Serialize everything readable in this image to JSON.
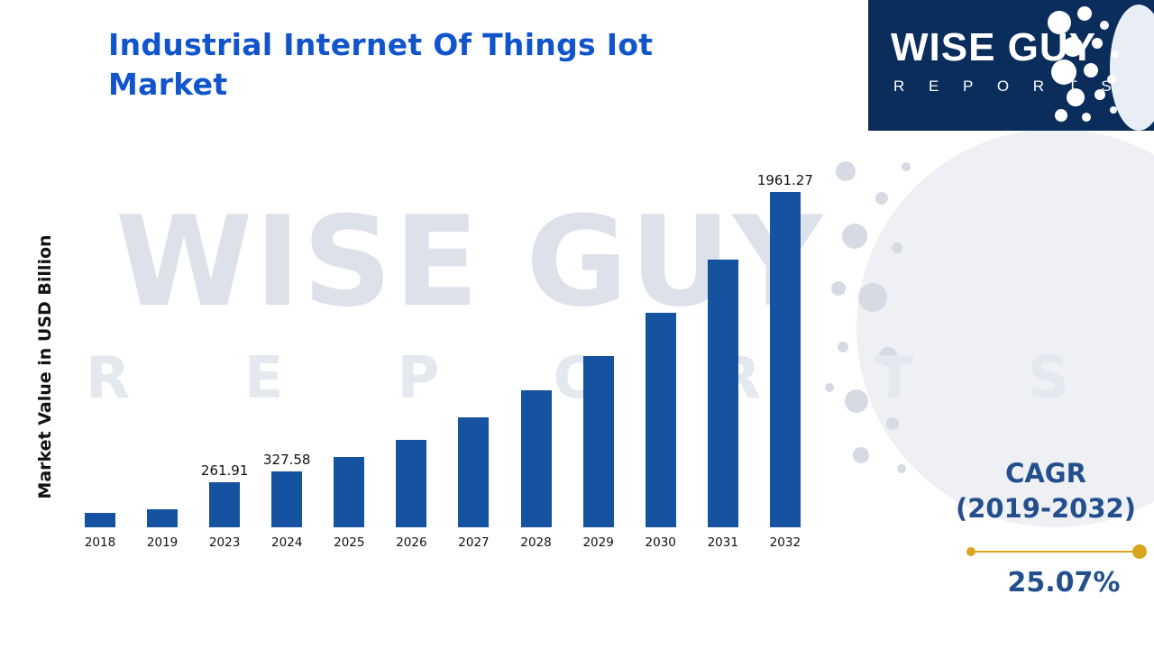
{
  "page": {
    "title_line1": "Industrial Internet Of Things  Iot",
    "title_line2": "Market"
  },
  "logo": {
    "name": "WISE GUY",
    "subtitle": "R E P O R T S",
    "face_icon": "dotted-face-profile-icon"
  },
  "watermark": {
    "line1": "WISE GUY",
    "line2": "R E P O R T S"
  },
  "axis": {
    "y_label": "Market Value in USD Billion"
  },
  "cagr": {
    "label": "CAGR",
    "range": "(2019-2032)",
    "value": "25.07%"
  },
  "colors": {
    "title_blue": "#1155cc",
    "bar_blue": "#15529f",
    "navy": "#0a2d5c",
    "cagr_blue": "#234f8d",
    "gold": "#d9a41e",
    "watermark_gray": "#dde1ea",
    "face_gray": "#eef0f4",
    "dot_gray": "#d6dae2"
  },
  "chart_data": {
    "type": "bar",
    "title": "Industrial Internet Of Things Iot Market",
    "xlabel": "",
    "ylabel": "Market Value in USD Billion",
    "categories": [
      "2018",
      "2019",
      "2023",
      "2024",
      "2025",
      "2026",
      "2027",
      "2028",
      "2029",
      "2030",
      "2031",
      "2032"
    ],
    "values": [
      85,
      107,
      261.91,
      327.58,
      409.7,
      512.4,
      640.9,
      801.6,
      1002.6,
      1254.0,
      1568.3,
      1961.27
    ],
    "value_labels": {
      "2023": "261.91",
      "2024": "327.58",
      "2032": "1961.27"
    },
    "ylim": [
      0,
      2100
    ],
    "bar_color": "#15529f",
    "grid": false,
    "legend": false
  }
}
